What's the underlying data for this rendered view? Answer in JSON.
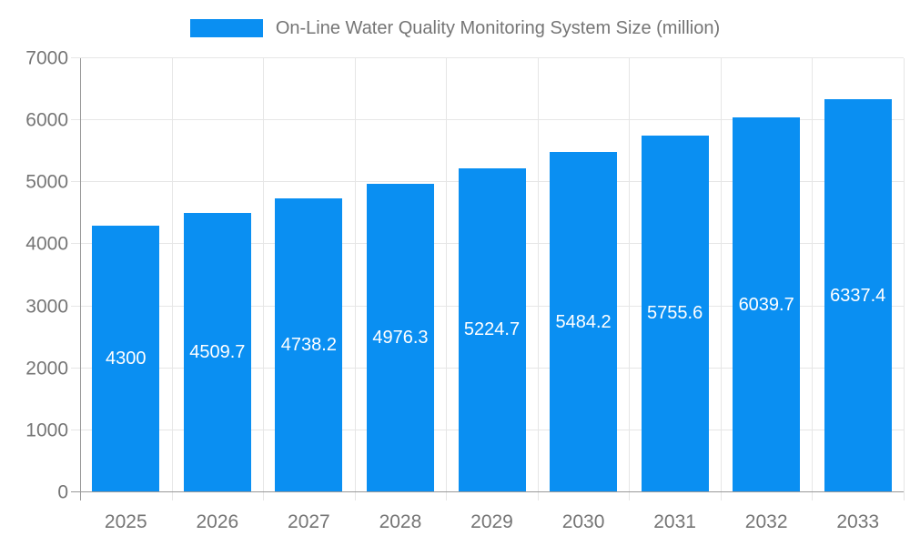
{
  "chart_data": {
    "type": "bar",
    "title": "On-Line Water Quality Monitoring System Size (million)",
    "categories": [
      "2025",
      "2026",
      "2027",
      "2028",
      "2029",
      "2030",
      "2031",
      "2032",
      "2033"
    ],
    "values": [
      4300,
      4509.7,
      4738.2,
      4976.3,
      5224.7,
      5484.2,
      5755.6,
      6039.7,
      6337.4
    ],
    "value_labels": [
      "4300",
      "4509.7",
      "4738.2",
      "4976.3",
      "5224.7",
      "5484.2",
      "5755.6",
      "6039.7",
      "6337.4"
    ],
    "xlabel": "",
    "ylabel": "",
    "ylim": [
      0,
      7000
    ],
    "ytick_step": 1000,
    "ytick_labels": [
      "0",
      "1000",
      "2000",
      "3000",
      "4000",
      "5000",
      "6000",
      "7000"
    ],
    "grid": true,
    "legend_position": "top-center",
    "colors": {
      "bar": "#0a8ff2",
      "grid": "#e6e6e6",
      "axis": "#999999",
      "text": "#757575",
      "value_label": "#ffffff",
      "background": "#ffffff"
    }
  }
}
